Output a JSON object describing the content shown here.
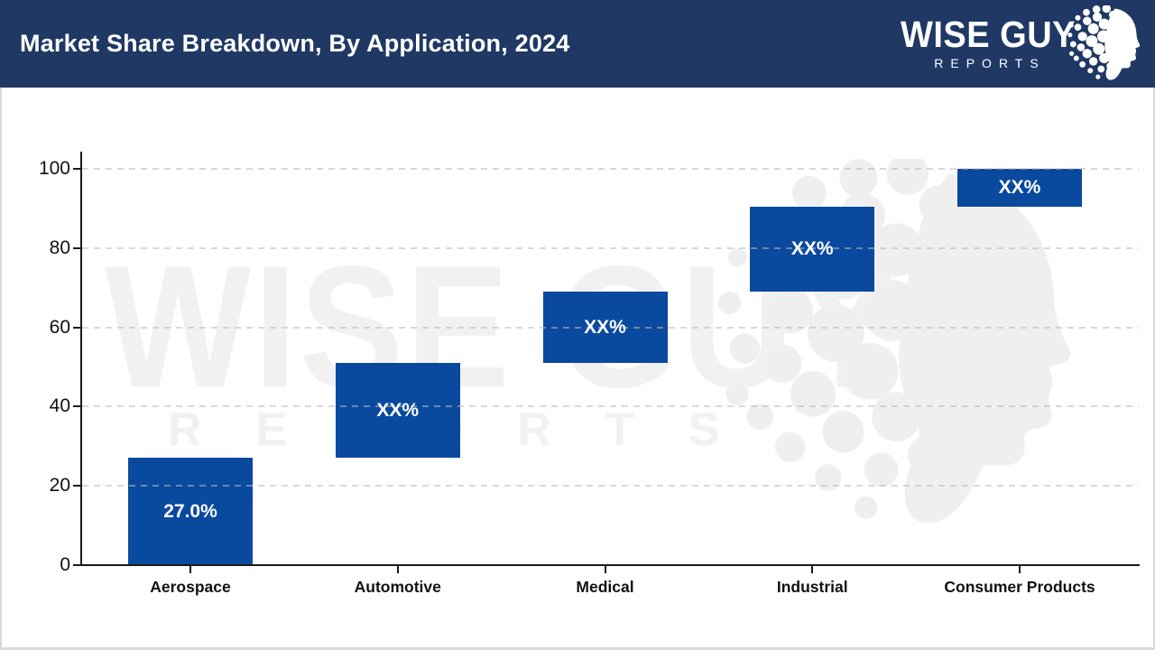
{
  "header": {
    "title": "Market Share Breakdown, By Application, 2024",
    "background_color": "#1f3864",
    "logo": {
      "wordmark": "WISE GUY",
      "subtext": "REPORTS"
    }
  },
  "watermark": {
    "wordmark": "WISE GUY",
    "subtext": "REPORTS"
  },
  "chart_data": {
    "type": "bar",
    "subtype": "waterfall",
    "title": "Market Share Breakdown, By Application, 2024",
    "categories": [
      "Aerospace",
      "Automotive",
      "Medical",
      "Industrial",
      "Consumer Products"
    ],
    "segments": [
      {
        "category": "Aerospace",
        "start": 0,
        "end": 27,
        "value": 27,
        "label": "27.0%"
      },
      {
        "category": "Automotive",
        "start": 27,
        "end": 51,
        "value": 24,
        "label": "XX%"
      },
      {
        "category": "Medical",
        "start": 51,
        "end": 69,
        "value": 18,
        "label": "XX%"
      },
      {
        "category": "Industrial",
        "start": 69,
        "end": 90.5,
        "value": 21.5,
        "label": "XX%"
      },
      {
        "category": "Consumer Products",
        "start": 90.5,
        "end": 100,
        "value": 9.5,
        "label": "XX%"
      }
    ],
    "xlabel": "",
    "ylabel": "",
    "y_ticks": [
      0,
      20,
      40,
      60,
      80,
      100
    ],
    "ylim": [
      0,
      104
    ],
    "grid": "horizontal-dashed",
    "legend": null,
    "bar_color": "#0a4a9e",
    "bar_label_color": "#ffffff",
    "axis_color": "#1a1a1a"
  }
}
